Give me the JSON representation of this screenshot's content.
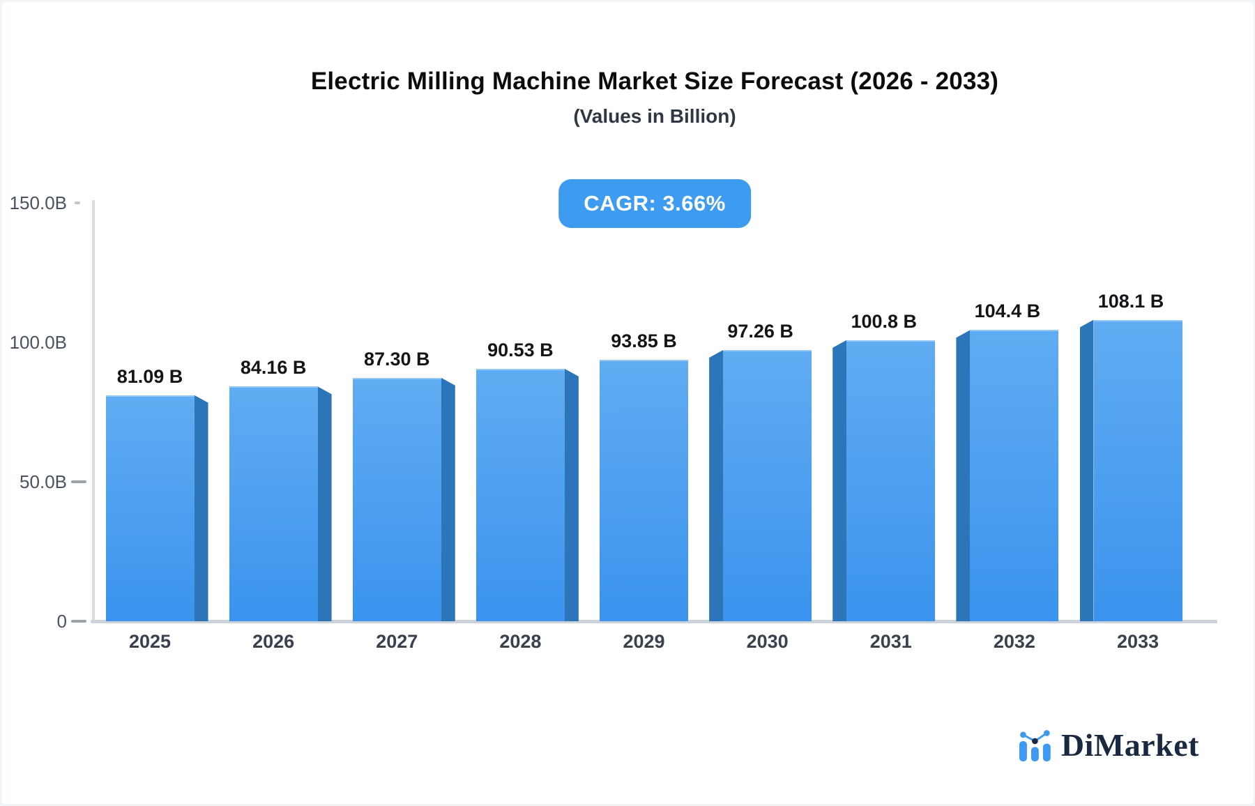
{
  "title": "Electric Milling Machine Market Size Forecast (2026 - 2033)",
  "subtitle": "(Values in Billion)",
  "badge": {
    "label": "CAGR: 3.66%"
  },
  "brand": {
    "name": "DiMarket",
    "icon": "bar-chart-logo-icon"
  },
  "colors": {
    "badge_bg": "#3e9cf0",
    "bar_face_top": "#60acf2",
    "bar_face_bottom": "#3b93ee",
    "bar_side": "#2c75b8",
    "axis_line": "#d9dde3",
    "brand_navy": "#1a2940",
    "brand_blue": "#3d9af0"
  },
  "chart_data": {
    "type": "bar",
    "title": "Electric Milling Machine Market Size Forecast (2026 - 2033)",
    "subtitle": "(Values in Billion)",
    "categories": [
      "2025",
      "2026",
      "2027",
      "2028",
      "2029",
      "2030",
      "2031",
      "2032",
      "2033"
    ],
    "values": [
      81.09,
      84.16,
      87.3,
      90.53,
      93.85,
      97.26,
      100.8,
      104.4,
      108.1
    ],
    "value_labels": [
      "81.09 B",
      "84.16 B",
      "87.30 B",
      "90.53 B",
      "93.85 B",
      "97.26 B",
      "100.8 B",
      "104.4 B",
      "108.1 B"
    ],
    "xlabel": "",
    "ylabel": "",
    "ylim": [
      0,
      150
    ],
    "grid": false,
    "legend": false,
    "yticks": [
      {
        "label": "150.0B",
        "value": 150,
        "dash": "small"
      },
      {
        "label": "100.0B",
        "value": 100,
        "dash": "none"
      },
      {
        "label": "50.0B",
        "value": 50,
        "dash": "long"
      },
      {
        "label": "0",
        "value": 0,
        "dash": "long"
      }
    ]
  }
}
